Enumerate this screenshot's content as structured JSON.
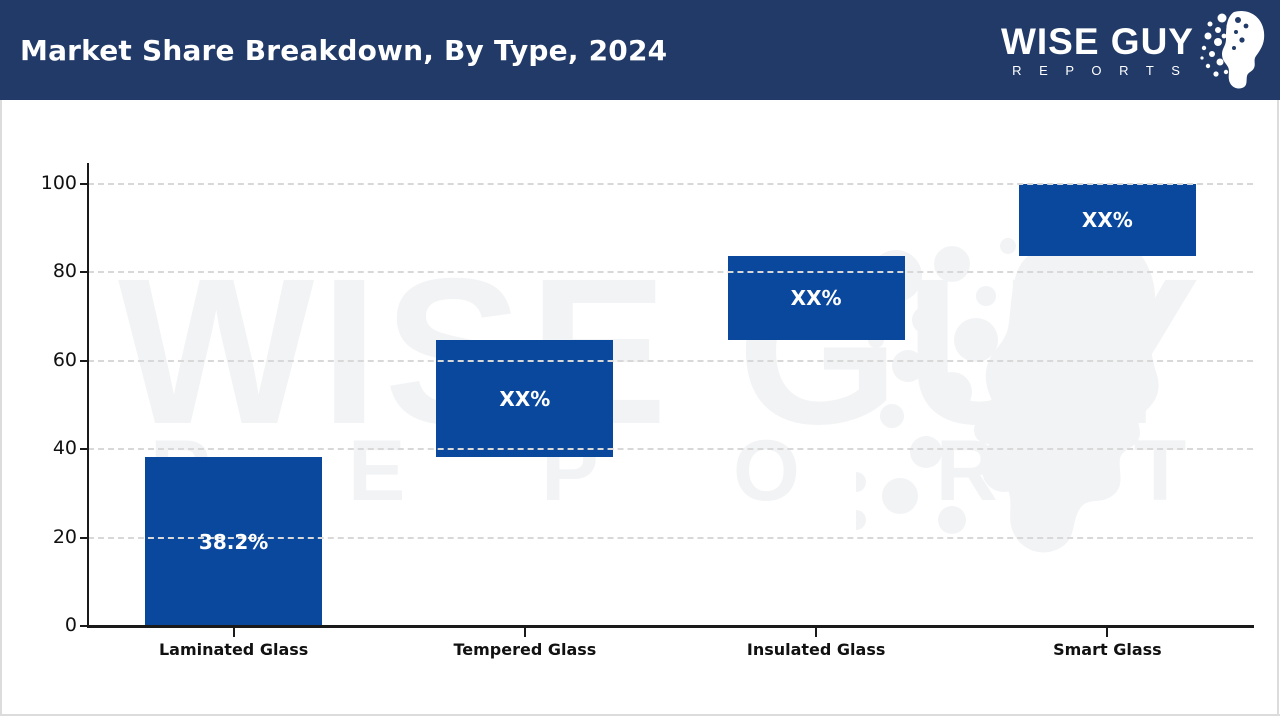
{
  "header": {
    "title": "Market Share Breakdown, By Type, 2024",
    "logo": {
      "name_line": "WISE GUY",
      "sub_line": "R E P O R T S"
    }
  },
  "watermark": {
    "line1": "WISE GUY",
    "line2": "R E P O R T S"
  },
  "colors": {
    "header_bg": "#213a68",
    "bar_blue": "#0a489e",
    "grid_gray": "#d8d8d8",
    "watermark_gray": "#f2f3f5"
  },
  "chart_data": {
    "type": "bar",
    "variant": "floating-segment (waterfall-style market share breakdown)",
    "title": "Market Share Breakdown, By Type, 2024",
    "categories": [
      "Laminated Glass",
      "Tempered Glass",
      "Insulated Glass",
      "Smart Glass"
    ],
    "segments": [
      {
        "category": "Laminated Glass",
        "start": 0,
        "end": 38.2,
        "label": "38.2%"
      },
      {
        "category": "Tempered Glass",
        "start": 38.2,
        "end": 64.6,
        "label": "XX%"
      },
      {
        "category": "Insulated Glass",
        "start": 64.6,
        "end": 83.6,
        "label": "XX%"
      },
      {
        "category": "Smart Glass",
        "start": 83.6,
        "end": 100,
        "label": "XX%"
      }
    ],
    "xlabel": "",
    "ylabel": "",
    "ylim": [
      0,
      100
    ],
    "yticks": [
      0,
      20,
      40,
      60,
      80,
      100
    ],
    "grid": {
      "axis": "y",
      "style": "dashed",
      "color": "#d8d8d8",
      "drawn_over_bars": true
    },
    "bar_color": "#0a489e",
    "bar_label_color": "#ffffff",
    "legend": "none"
  }
}
